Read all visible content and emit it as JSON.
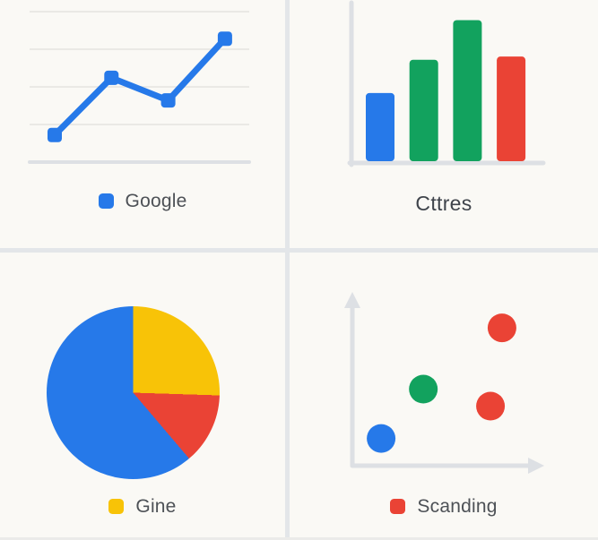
{
  "layout_colors": {
    "background": "#faf9f5",
    "divider": "#e3e6e9",
    "grid_line": "#eae9e5",
    "axis": "#dde0e4",
    "legend_text": "#4d5156",
    "caption_text": "#3f444b"
  },
  "palette": {
    "blue": "#2679e9",
    "green": "#12a25e",
    "red": "#ea4335",
    "yellow": "#f8c307"
  },
  "panels": {
    "line": {
      "legend_label": "Google",
      "swatch_color": "#2679e9"
    },
    "bar": {
      "caption": "Cttres"
    },
    "pie": {
      "legend_label": "Gine",
      "swatch_color": "#f8c307"
    },
    "scatter": {
      "legend_label": "Scanding",
      "swatch_color": "#ea4335"
    }
  },
  "chart_data": [
    {
      "type": "line",
      "title": "Google",
      "legend": [
        "Google"
      ],
      "legend_position": "bottom",
      "x": [
        1,
        2,
        3,
        4
      ],
      "series": [
        {
          "name": "Google",
          "color": "#2679e9",
          "values": [
            18,
            56,
            41,
            82
          ]
        }
      ],
      "marker": "rounded-square",
      "grid": "horizontal-lines",
      "gridline_count": 4,
      "baseline": true,
      "axis_tick_labels": false,
      "ylim": [
        0,
        100
      ]
    },
    {
      "type": "bar",
      "title": "Cttres",
      "categories": [
        "1",
        "2",
        "3",
        "4"
      ],
      "values": [
        43,
        64,
        89,
        66
      ],
      "bar_colors": [
        "#2679e9",
        "#12a25e",
        "#12a25e",
        "#ea4335"
      ],
      "axes": "left-and-bottom",
      "axis_tick_labels": false,
      "grid": "off",
      "ylim": [
        0,
        100
      ]
    },
    {
      "type": "pie",
      "title": "Gine",
      "legend": [
        "Gine"
      ],
      "legend_position": "bottom",
      "start_angle_deg": 0,
      "direction": "clockwise",
      "slices": [
        {
          "label": "yellow",
          "value": 25.5,
          "color": "#f8c307"
        },
        {
          "label": "red",
          "value": 13.3,
          "color": "#ea4335"
        },
        {
          "label": "blue",
          "value": 61.2,
          "color": "#2679e9"
        }
      ]
    },
    {
      "type": "scatter",
      "title": "Scanding",
      "legend": [
        "Scanding"
      ],
      "legend_position": "bottom",
      "axes": "arrowed-left-and-bottom",
      "axis_tick_labels": false,
      "xlim": [
        0,
        100
      ],
      "ylim": [
        0,
        100
      ],
      "points": [
        {
          "x": 15,
          "y": 16,
          "color": "#2679e9"
        },
        {
          "x": 37,
          "y": 45,
          "color": "#12a25e"
        },
        {
          "x": 72,
          "y": 35,
          "color": "#ea4335"
        },
        {
          "x": 78,
          "y": 81,
          "color": "#ea4335"
        }
      ],
      "point_radius": 16
    }
  ]
}
